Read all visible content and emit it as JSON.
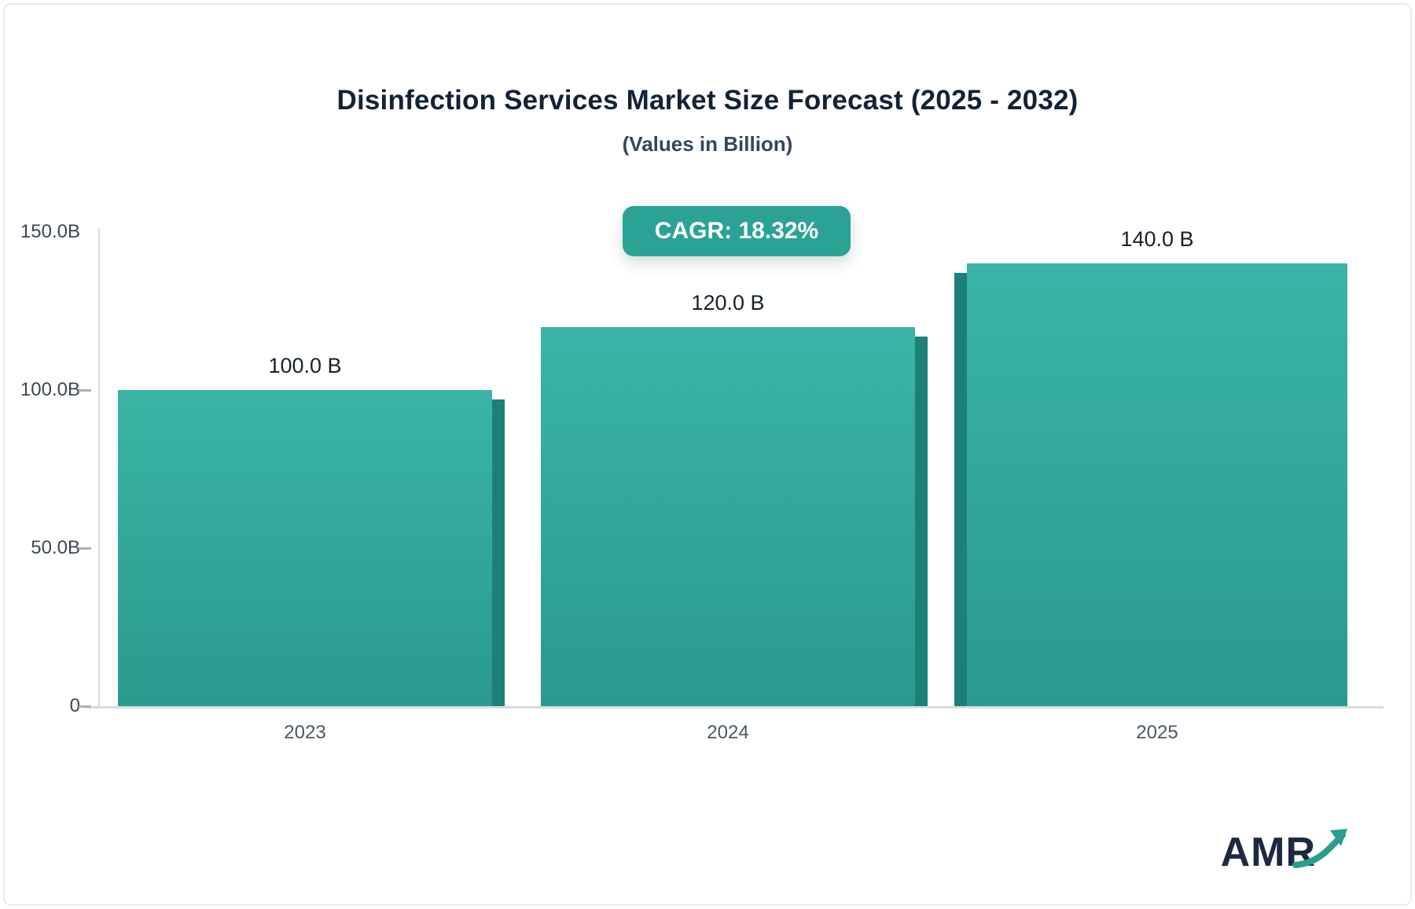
{
  "chart_data": {
    "type": "bar",
    "title": "Disinfection Services Market Size Forecast (2025 - 2032)",
    "subtitle": "(Values in Billion)",
    "badge": "CAGR: 18.32%",
    "categories": [
      "2023",
      "2024",
      "2025"
    ],
    "values": [
      100.0,
      120.0,
      140.0
    ],
    "value_labels": [
      "100.0 B",
      "120.0 B",
      "140.0 B"
    ],
    "xlabel": "",
    "ylabel": "",
    "ylim": [
      0,
      150
    ],
    "yticks": [
      {
        "value": 150,
        "label": "150.0B",
        "dash": false
      },
      {
        "value": 100,
        "label": "100.0B",
        "dash": true
      },
      {
        "value": 50,
        "label": "50.0B",
        "dash": true
      },
      {
        "value": 0,
        "label": "0",
        "dash": true
      }
    ],
    "grid": false,
    "legend": "none",
    "bar_edge_sides": [
      "right",
      "right",
      "left"
    ],
    "colors": {
      "bar_top": "#3ab5a6",
      "bar_bottom": "#2a9a8b",
      "bar_edge": "#1d8076",
      "badge_bg": "#2aa396",
      "badge_text": "#ffffff",
      "accent": "#2a9d8f"
    }
  },
  "logo": {
    "text": "AMR"
  }
}
